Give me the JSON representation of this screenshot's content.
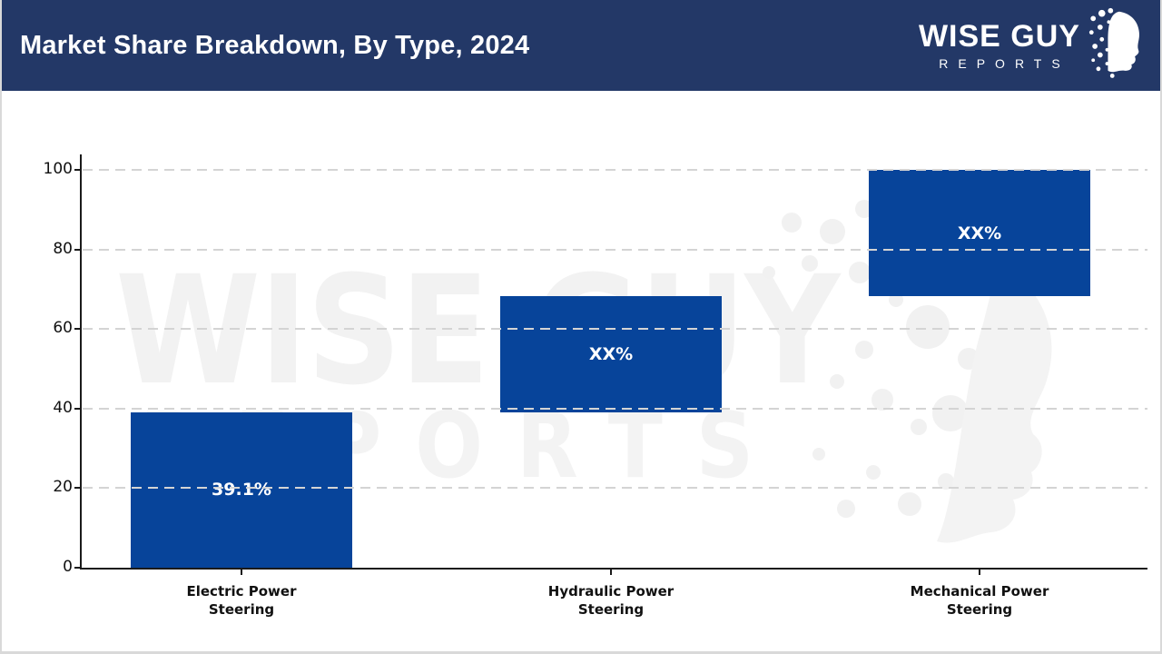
{
  "header": {
    "title": "Market Share Breakdown, By Type, 2024",
    "logo": {
      "wordmark": "WISE GUY",
      "tagline": "REPORTS"
    }
  },
  "watermark": {
    "wordmark": "WISE GUY",
    "tagline": "REPORTS"
  },
  "chart_data": {
    "type": "bar",
    "subtype": "stacked-waterfall",
    "title": "Market Share Breakdown, By Type, 2024",
    "categories": [
      [
        "Electric Power",
        "Steering"
      ],
      [
        "Hydraulic Power",
        "Steering"
      ],
      [
        "Mechanical Power",
        "Steering"
      ]
    ],
    "segments": [
      {
        "category": "Electric Power Steering",
        "start": 0,
        "end": 39.1,
        "label": "39.1%"
      },
      {
        "category": "Hydraulic Power Steering",
        "start": 39.1,
        "end": 68.2,
        "label": "XX%"
      },
      {
        "category": "Mechanical Power Steering",
        "start": 68.2,
        "end": 100,
        "label": "XX%"
      }
    ],
    "yticks": [
      0,
      20,
      40,
      60,
      80,
      100
    ],
    "ylim": [
      0,
      105
    ],
    "xlabel": "",
    "ylabel": "",
    "grid": true,
    "legend": false,
    "colors": {
      "bar": "#07449a",
      "bar_label": "#ffffff",
      "grid": "#d4d4d4",
      "axis": "#1a1a1a",
      "header_bg": "#233867",
      "watermark": "#f2f2f2"
    }
  }
}
